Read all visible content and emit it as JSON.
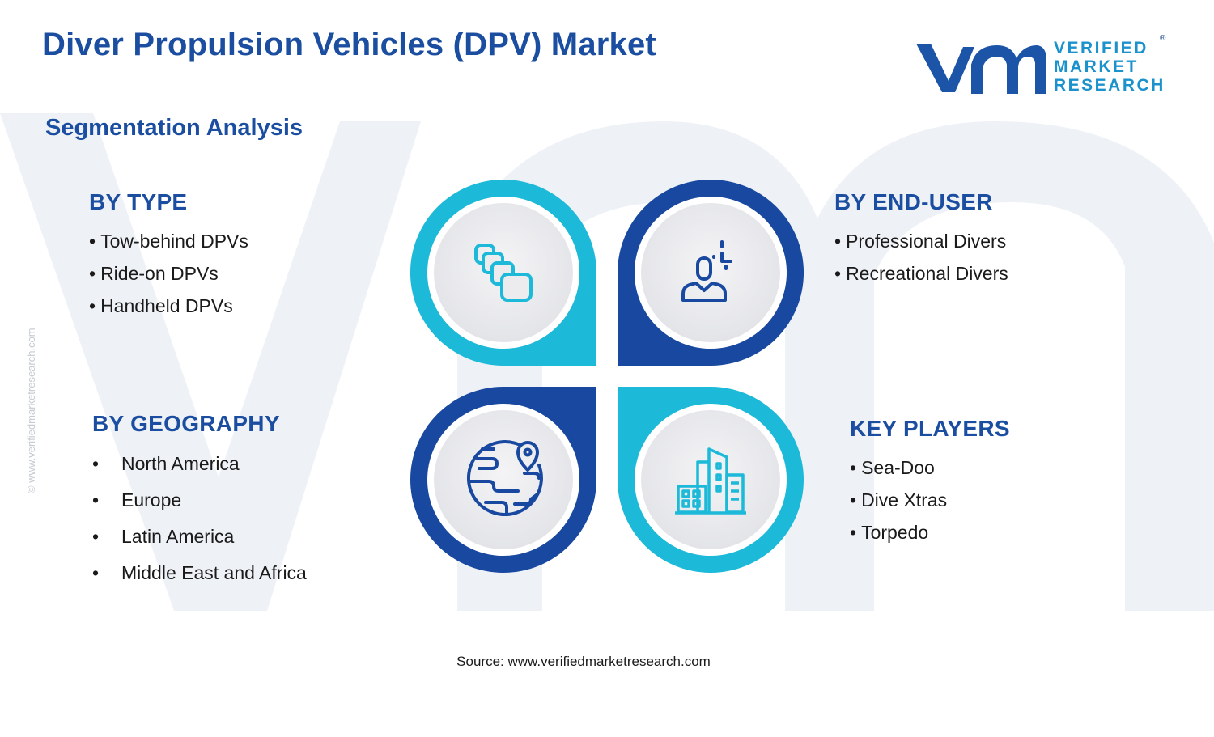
{
  "header": {
    "title": "Diver Propulsion Vehicles (DPV) Market",
    "subtitle": "Segmentation Analysis"
  },
  "logo": {
    "line1": "VERIFIED",
    "line2": "MARKET",
    "line3": "RESEARCH",
    "registered": "®"
  },
  "side_url": "© www.verifiedmarketresearch.com",
  "segments": {
    "by_type": {
      "heading": "BY TYPE",
      "items": [
        "Tow-behind DPVs",
        "Ride-on DPVs",
        "Handheld DPVs"
      ]
    },
    "by_end_user": {
      "heading": "BY END-USER",
      "items": [
        "Professional Divers",
        "Recreational Divers"
      ]
    },
    "by_geography": {
      "heading": "BY GEOGRAPHY",
      "items": [
        "North America",
        "Europe",
        "Latin America",
        "Middle East and Africa"
      ]
    },
    "key_players": {
      "heading": "KEY PLAYERS",
      "items": [
        "Sea-Doo",
        "Dive Xtras",
        "Torpedo"
      ]
    }
  },
  "icons": {
    "top_left": "stacked-cards-icon",
    "top_right": "user-profile-icon",
    "bottom_left": "globe-location-icon",
    "bottom_right": "city-buildings-icon"
  },
  "colors": {
    "title_blue": "#1b4ea0",
    "dark_blue": "#1848a0",
    "cyan": "#1cb9d8",
    "watermark": "#edf0f6"
  },
  "source": "Source: www.verifiedmarketresearch.com"
}
